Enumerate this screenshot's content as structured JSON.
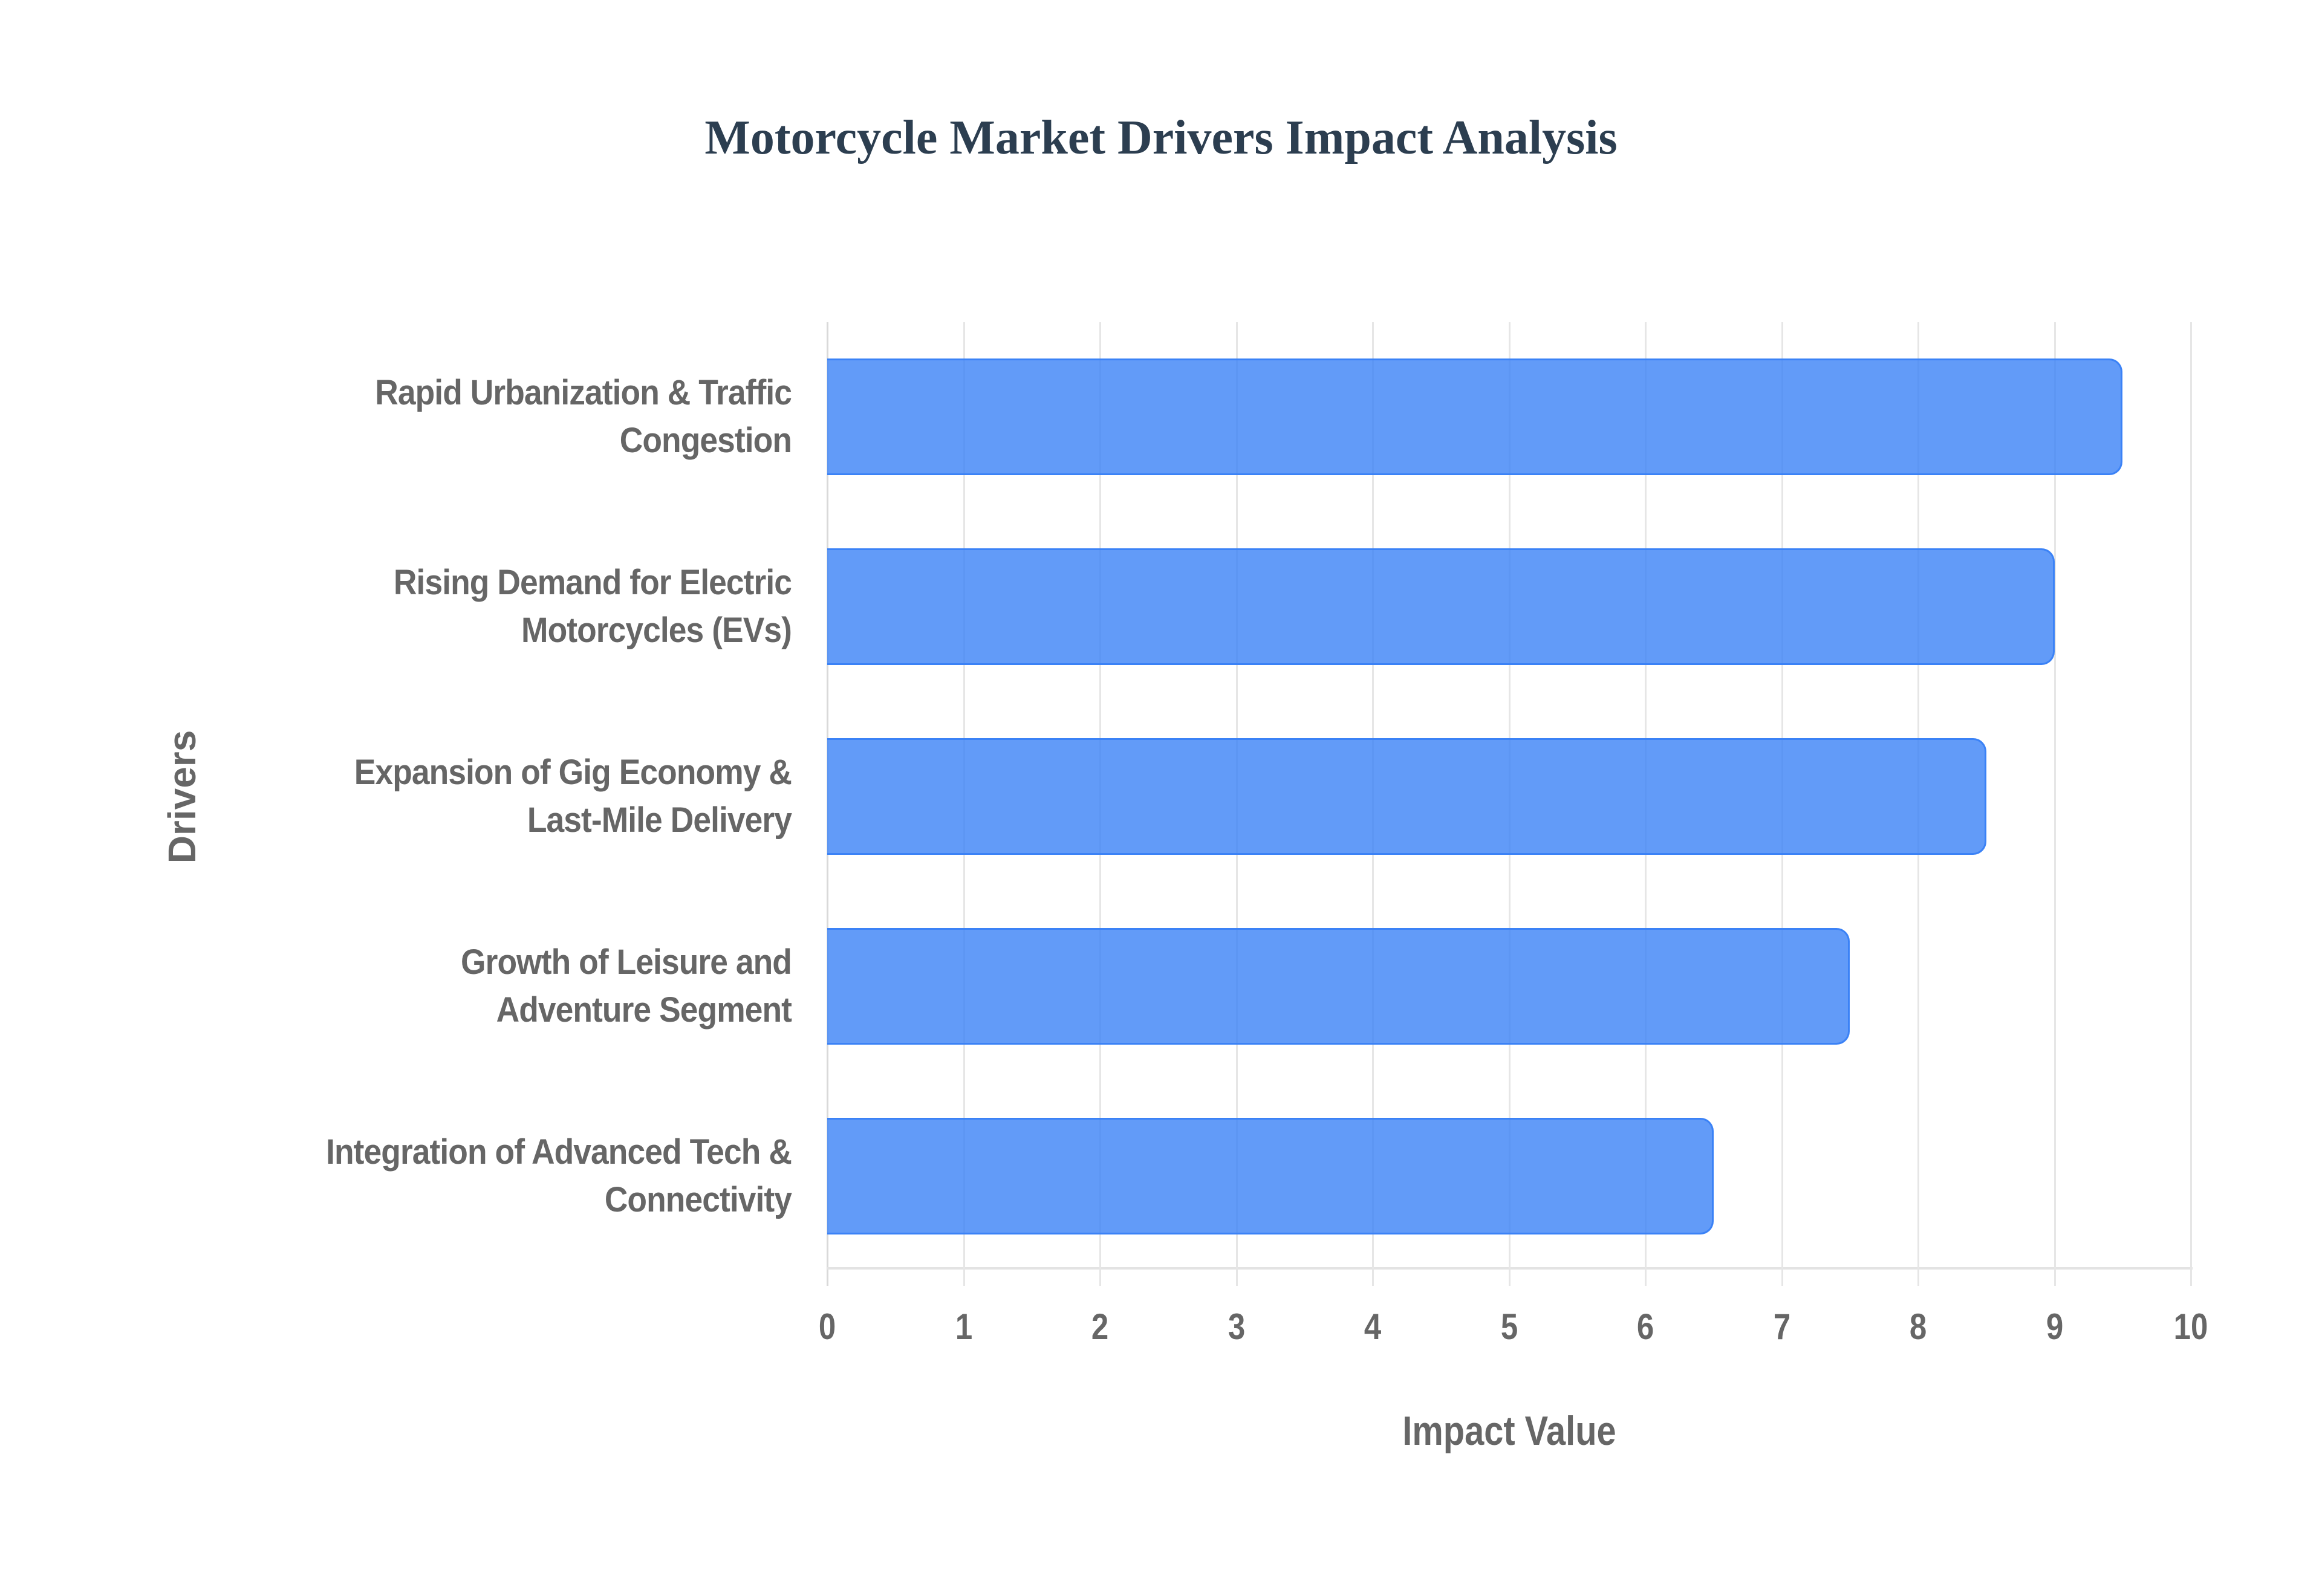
{
  "title": "Motorcycle Market Drivers Impact Analysis",
  "colors": {
    "bar_fill": "rgba(59,130,246,0.8)",
    "bar_border": "#3b82f6",
    "title": "#2c3e50",
    "axis_text": "#666666",
    "grid": "#e6e6e6"
  },
  "axes": {
    "x_title": "Impact Value",
    "y_title": "Drivers",
    "x_ticks": [
      "0",
      "1",
      "2",
      "3",
      "4",
      "5",
      "6",
      "7",
      "8",
      "9",
      "10"
    ]
  },
  "categories": [
    {
      "line1": "Rapid Urbanization & Traffic",
      "line2": "Congestion"
    },
    {
      "line1": "Rising Demand for Electric",
      "line2": "Motorcycles (EVs)"
    },
    {
      "line1": "Expansion of Gig Economy &",
      "line2": "Last-Mile Delivery"
    },
    {
      "line1": "Growth of Leisure and",
      "line2": "Adventure Segment"
    },
    {
      "line1": "Integration of Advanced Tech &",
      "line2": "Connectivity"
    }
  ],
  "chart_data": {
    "type": "bar",
    "orientation": "horizontal",
    "title": "Motorcycle Market Drivers Impact Analysis",
    "xlabel": "Impact Value",
    "ylabel": "Drivers",
    "categories": [
      "Rapid Urbanization & Traffic Congestion",
      "Rising Demand for Electric Motorcycles (EVs)",
      "Expansion of Gig Economy & Last-Mile Delivery",
      "Growth of Leisure and Adventure Segment",
      "Integration of Advanced Tech & Connectivity"
    ],
    "values": [
      9.5,
      9.0,
      8.5,
      7.5,
      6.5
    ],
    "xlim": [
      0,
      10
    ],
    "x_ticks": [
      0,
      1,
      2,
      3,
      4,
      5,
      6,
      7,
      8,
      9,
      10
    ],
    "grid": true,
    "legend": false
  }
}
